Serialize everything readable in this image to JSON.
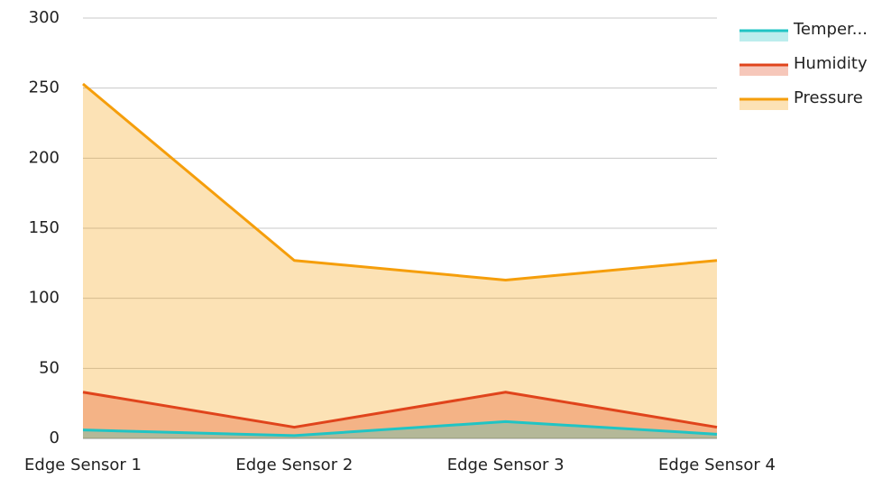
{
  "chart_data": {
    "type": "area",
    "categories": [
      "Edge Sensor 1",
      "Edge Sensor 2",
      "Edge Sensor 3",
      "Edge Sensor 4"
    ],
    "series": [
      {
        "name": "Temper...",
        "color": "#20c4c4",
        "values": [
          6,
          2,
          12,
          3
        ]
      },
      {
        "name": "Humidity",
        "color": "#e0441c",
        "values": [
          33,
          8,
          33,
          8
        ]
      },
      {
        "name": "Pressure",
        "color": "#f59e0b",
        "values": [
          253,
          127,
          113,
          127
        ]
      }
    ],
    "ylim": [
      0,
      300
    ],
    "yticks": [
      0,
      50,
      100,
      150,
      200,
      250,
      300
    ],
    "grid": true,
    "legend": "right"
  }
}
